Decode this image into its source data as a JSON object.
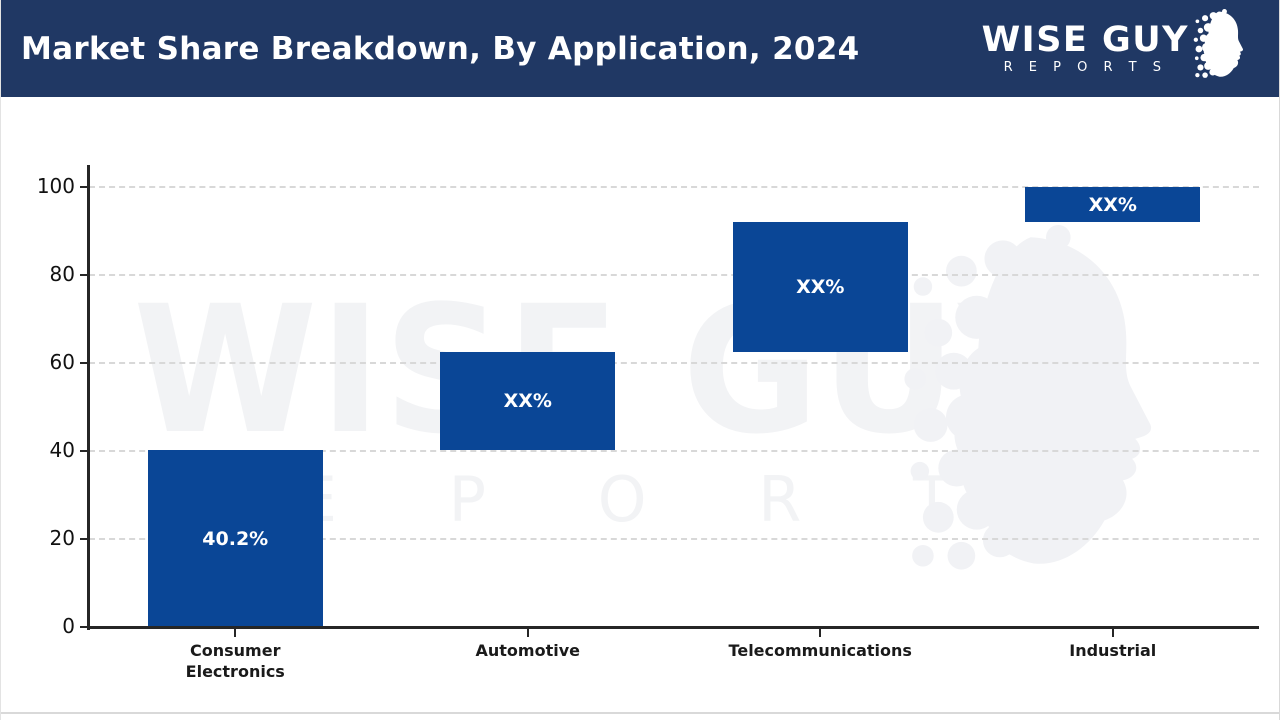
{
  "header": {
    "title": "Market Share Breakdown, By Application, 2024",
    "logo": {
      "line1": "WISE GUY",
      "line2": "R E P O R T S"
    }
  },
  "watermark": {
    "line1": "WISE GUY",
    "line2": "R E P O R T S"
  },
  "colors": {
    "header_bg": "#203864",
    "bar": "#0a4696",
    "bar_label": "#ffffff",
    "axis": "#262626",
    "grid": "#d8d8d8",
    "watermark": "#f2f3f5"
  },
  "chart_data": {
    "type": "bar",
    "subtype": "waterfall",
    "title": "Market Share Breakdown, By Application, 2024",
    "categories": [
      "Consumer\nElectronics",
      "Automotive",
      "Telecommunications",
      "Industrial"
    ],
    "segments": [
      {
        "category": "Consumer Electronics",
        "start": 0,
        "end": 40.2,
        "label": "40.2%"
      },
      {
        "category": "Automotive",
        "start": 40.2,
        "end": 62.5,
        "label": "XX%"
      },
      {
        "category": "Telecommunications",
        "start": 62.5,
        "end": 92,
        "label": "XX%"
      },
      {
        "category": "Industrial",
        "start": 92,
        "end": 100,
        "label": "XX%"
      }
    ],
    "xlabel": "",
    "ylabel": "",
    "ylim": [
      0,
      100
    ],
    "yticks": [
      0,
      20,
      40,
      60,
      80,
      100
    ],
    "grid": "horizontal-dashed",
    "legend": null,
    "notes": "Stacked waterfall of market share; only first segment shows numeric value, others masked as XX%"
  }
}
